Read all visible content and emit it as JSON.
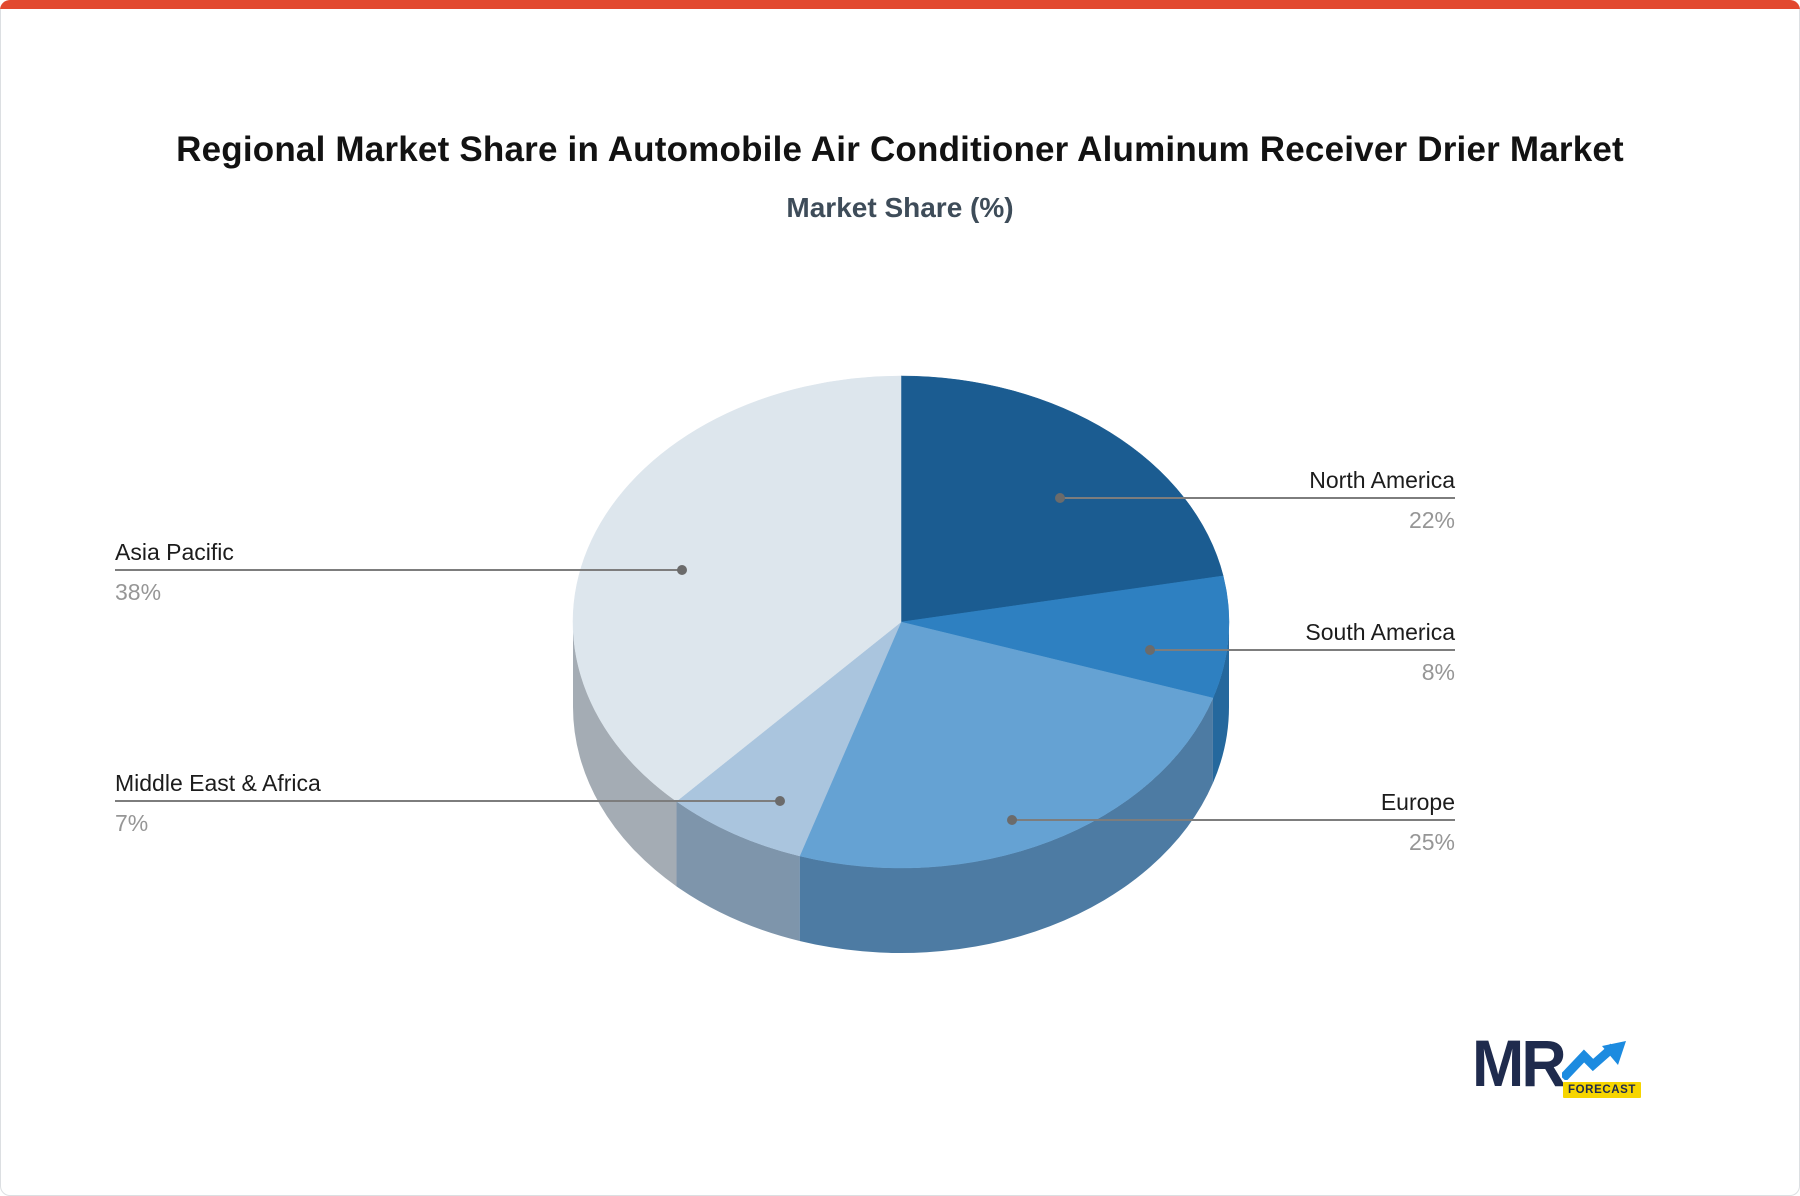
{
  "frame": {
    "top_bar_color": "#e2492f",
    "background": "#ffffff"
  },
  "title": "Regional Market Share in Automobile Air Conditioner Aluminum Receiver Drier Market",
  "subtitle": "Market Share (%)",
  "chart_data": {
    "type": "pie",
    "style": "3d",
    "title": "Regional Market Share in Automobile Air Conditioner Aluminum Receiver Drier Market",
    "subtitle": "Market Share (%)",
    "unit": "%",
    "start_angle_deg": 0,
    "direction": "clockwise",
    "legend_position": "none",
    "slices": [
      {
        "label": "North America",
        "value": 22,
        "pct_label": "22%",
        "color": "#1b5c91",
        "side_color": "#25689d",
        "label_side": "right"
      },
      {
        "label": "South America",
        "value": 8,
        "pct_label": "8%",
        "color": "#2e80c1",
        "side_color": "#25689d",
        "label_side": "right"
      },
      {
        "label": "Europe",
        "value": 25,
        "pct_label": "25%",
        "color": "#65a2d3",
        "side_color": "#4d7ba3",
        "label_side": "right"
      },
      {
        "label": "Middle East & Africa",
        "value": 7,
        "pct_label": "7%",
        "color": "#aac5de",
        "side_color": "#7e95ab",
        "label_side": "left"
      },
      {
        "label": "Asia Pacific",
        "value": 38,
        "pct_label": "38%",
        "color": "#dde6ed",
        "side_color": "#a4acb4",
        "label_side": "left"
      }
    ],
    "label_text_color": "#1c1c1c",
    "pct_text_color": "#969696",
    "leader_line_color": "#7d7d7d",
    "leader_dot_color": "#6b6b6b"
  },
  "logo": {
    "text": "MR",
    "badge": "FORECAST",
    "text_color": "#1f2b4d",
    "arrow_color": "#1c8be0",
    "badge_bg": "#f6d500",
    "badge_text_color": "#1f2b4d"
  }
}
